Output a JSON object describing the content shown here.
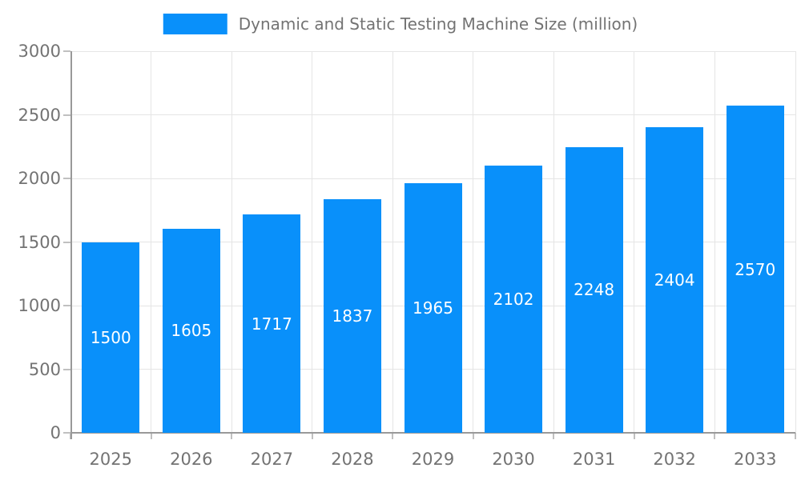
{
  "chart_data": {
    "type": "bar",
    "title": "Dynamic and Static Testing Machine Size (million)",
    "categories": [
      "2025",
      "2026",
      "2027",
      "2028",
      "2029",
      "2030",
      "2031",
      "2032",
      "2033"
    ],
    "values": [
      1500,
      1605,
      1717,
      1837,
      1965,
      2102,
      2248,
      2404,
      2570
    ],
    "xlabel": "",
    "ylabel": "",
    "ylim": [
      0,
      3000
    ],
    "ytick_step": 500,
    "ytick_labels": [
      "0",
      "500",
      "1000",
      "1500",
      "2000",
      "2500",
      "3000"
    ],
    "grid": true,
    "legend_position": "top-center",
    "colors": {
      "bar": "#0990FA",
      "bar_value_label": "#ffffff",
      "axis_text": "#737373",
      "legend_text": "#737373",
      "gridline": "#e5e5e5",
      "axis_line": "#999999",
      "tick": "#c0c0c0",
      "background": "#ffffff"
    }
  }
}
